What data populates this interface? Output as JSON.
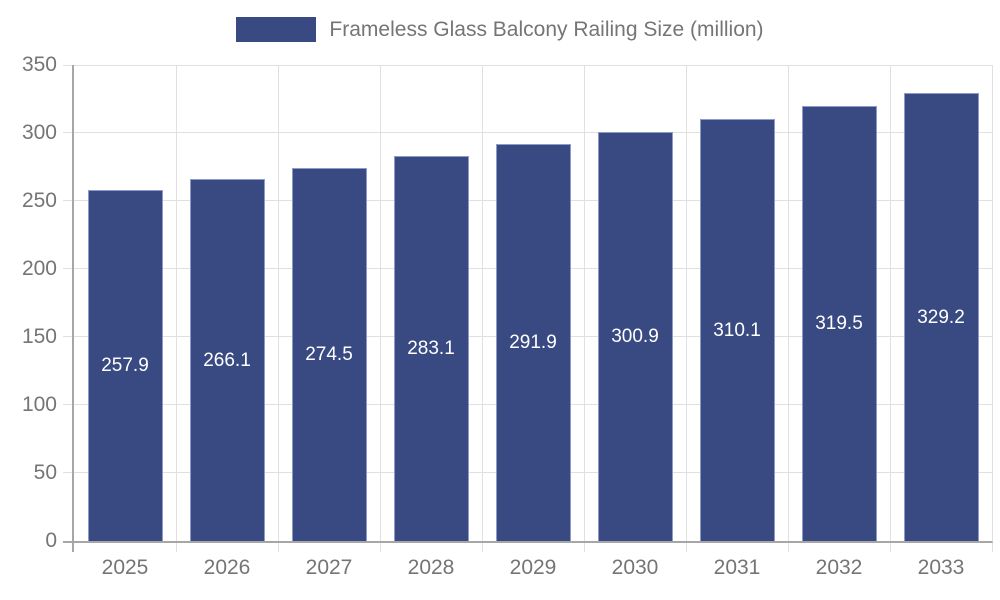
{
  "chart_data": {
    "type": "bar",
    "title": "",
    "legend": "Frameless Glass Balcony Railing Size (million)",
    "legend_position": "top",
    "categories": [
      "2025",
      "2026",
      "2027",
      "2028",
      "2029",
      "2030",
      "2031",
      "2032",
      "2033"
    ],
    "series": [
      {
        "name": "Frameless Glass Balcony Railing Size (million)",
        "values": [
          257.9,
          266.1,
          274.5,
          283.1,
          291.9,
          300.9,
          310.1,
          319.5,
          329.2
        ]
      }
    ],
    "value_labels": [
      "257.9",
      "266.1",
      "274.5",
      "283.1",
      "291.9",
      "300.9",
      "310.1",
      "319.5",
      "329.2"
    ],
    "ylim": [
      0,
      350
    ],
    "yticks": [
      0,
      50,
      100,
      150,
      200,
      250,
      300,
      350
    ],
    "grid": true,
    "colors": {
      "bar_fill": "#394a82",
      "bar_border": "#8e9bc8",
      "axis": "#a6a6a6",
      "gridline": "#e0e0e0",
      "tick_label": "#757575",
      "value_label": "#ffffff"
    }
  }
}
